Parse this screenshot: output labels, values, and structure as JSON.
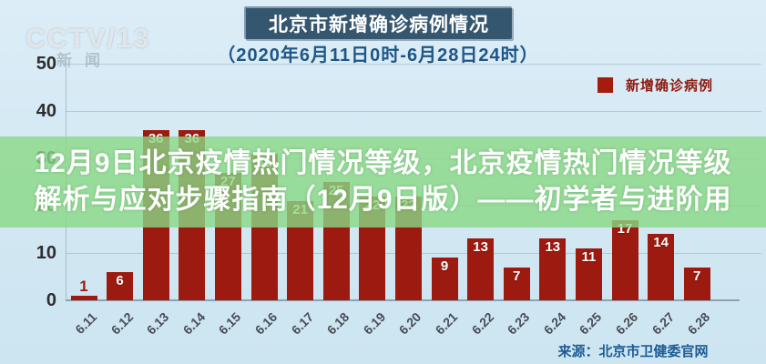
{
  "watermark": {
    "channel": "CCTV/13",
    "sublabel": "新闻"
  },
  "header": {
    "title": "北京市新增确诊病例情况",
    "subtitle": "（2020年6月11日0时-6月28日24时）"
  },
  "legend": {
    "label": "新增确诊病例",
    "color": "#a31d0f"
  },
  "overlay": {
    "line1": "12月9日北京疫情热门情况等级，北京疫情热门情况等级",
    "line2": "解析与应对步骤指南（12月9日版）——初学者与进阶用",
    "background": "#8ad885"
  },
  "source": "来源：北京市卫健委官网",
  "chart_data": {
    "type": "bar",
    "title": "北京市新增确诊病例情况",
    "subtitle": "（2020年6月11日0时-6月28日24时）",
    "categories": [
      "6.11",
      "6.12",
      "6.13",
      "6.14",
      "6.15",
      "6.16",
      "6.17",
      "6.18",
      "6.19",
      "6.20",
      "6.21",
      "6.22",
      "6.23",
      "6.24",
      "6.25",
      "6.26",
      "6.27",
      "6.28"
    ],
    "values": [
      1,
      6,
      36,
      36,
      27,
      31,
      21,
      25,
      22,
      22,
      9,
      13,
      7,
      13,
      11,
      17,
      14,
      7
    ],
    "xlabel": "",
    "ylabel": "",
    "ylim": [
      0,
      50
    ],
    "yticks": [
      0,
      10,
      20,
      30,
      40,
      50
    ],
    "bar_color": "#9c1a0f",
    "grid": true,
    "legend": [
      "新增确诊病例"
    ],
    "legend_position": "top-right",
    "source": "来源：北京市卫健委官网"
  }
}
